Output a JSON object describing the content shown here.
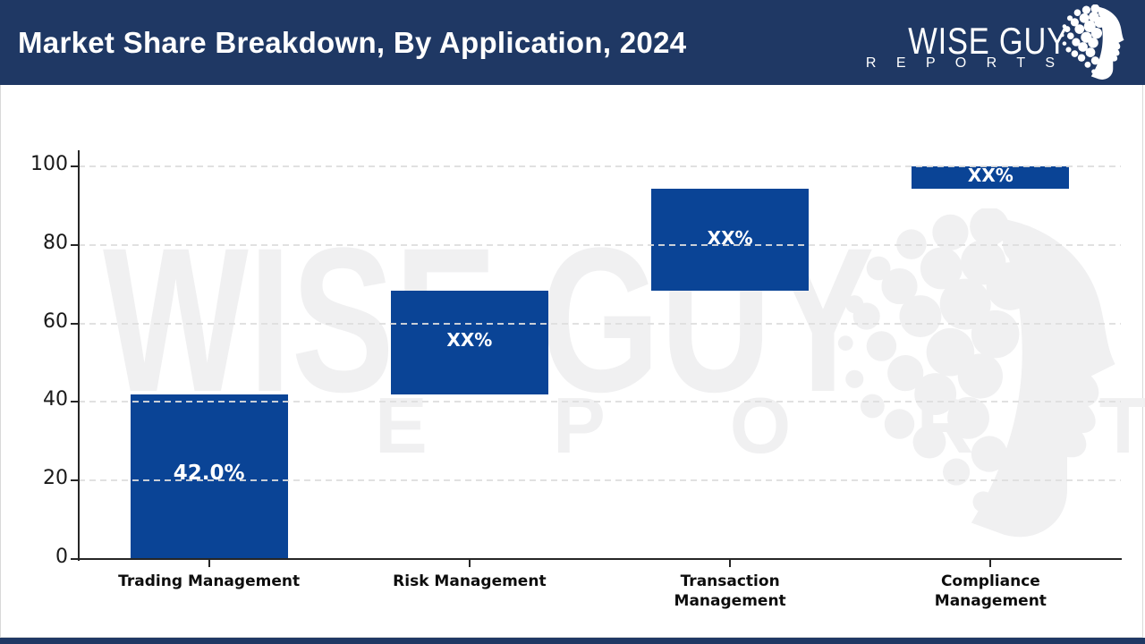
{
  "header": {
    "title": "Market Share Breakdown, By Application, 2024",
    "bg_color": "#1f3864",
    "logo": {
      "line1": "WISE GUY",
      "line2": "R E P O R T S"
    }
  },
  "watermark": {
    "line1": "WISE GUY",
    "line2": "R E P O R T S"
  },
  "chart_data": {
    "type": "bar",
    "subtype": "waterfall-stacked-segments",
    "title": "",
    "xlabel": "",
    "ylabel": "",
    "categories": [
      "Trading Management",
      "Risk Management",
      "Transaction Management",
      "Compliance Management"
    ],
    "x_label_lines": [
      [
        "Trading Management"
      ],
      [
        "Risk Management"
      ],
      [
        "Transaction",
        "Management"
      ],
      [
        "Compliance",
        "Management"
      ]
    ],
    "segments": [
      {
        "category": "Trading Management",
        "start": 0,
        "end": 42,
        "label": "42.0%"
      },
      {
        "category": "Risk Management",
        "start": 42,
        "end": 68.3,
        "label": "XX%"
      },
      {
        "category": "Transaction Management",
        "start": 68.3,
        "end": 94.3,
        "label": "XX%"
      },
      {
        "category": "Compliance Management",
        "start": 94.3,
        "end": 100,
        "label": "XX%"
      }
    ],
    "yticks": [
      0,
      20,
      40,
      60,
      80,
      100
    ],
    "ylim": [
      0,
      104
    ],
    "grid": "horizontal dashed, drawn above bars",
    "legend": "none",
    "bar_color": "#0a4496",
    "bar_label_color": "#ffffff",
    "axis_color": "#262626",
    "grid_color": "#dedede",
    "tick_label_color": "#1a1a1a"
  }
}
